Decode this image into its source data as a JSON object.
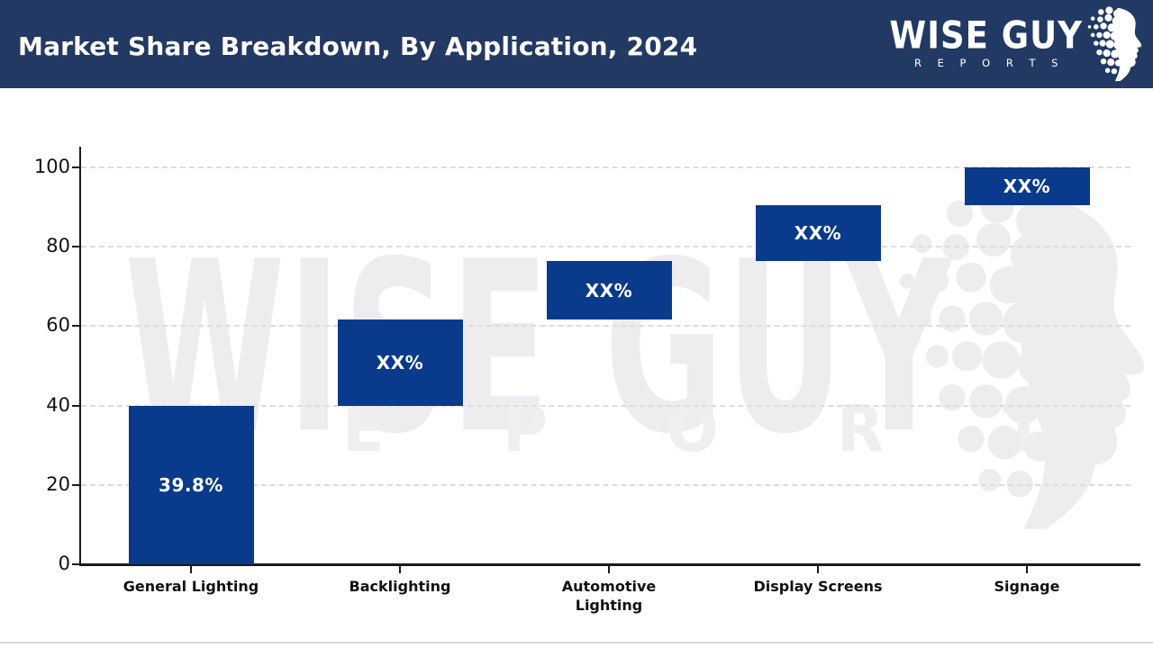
{
  "header": {
    "title": "Market Share Breakdown, By Application, 2024",
    "bg_color": "#223963",
    "logo": {
      "line1": "WISE GUY",
      "line2": "R E P O R T S"
    }
  },
  "watermark": {
    "line1": "WISE GUY",
    "line2": "R E P O R T S"
  },
  "chart_data": {
    "type": "bar",
    "subtype": "waterfall-floating-bars",
    "title": "Market Share Breakdown, By Application, 2024",
    "categories": [
      "General Lighting",
      "Backlighting",
      "Automotive\nLighting",
      "Display Screens",
      "Signage"
    ],
    "series": [
      {
        "name": "Market share segment",
        "segments": [
          {
            "category": "General Lighting",
            "start": 0,
            "end": 39.8,
            "label": "39.8%"
          },
          {
            "category": "Backlighting",
            "start": 39.9,
            "end": 61.7,
            "label": "XX%"
          },
          {
            "category": "Automotive Lighting",
            "start": 61.7,
            "end": 76.4,
            "label": "XX%"
          },
          {
            "category": "Display Screens",
            "start": 76.4,
            "end": 90.5,
            "label": "XX%"
          },
          {
            "category": "Signage",
            "start": 90.5,
            "end": 100.0,
            "label": "XX%"
          }
        ]
      }
    ],
    "xlabel": "",
    "ylabel": "",
    "yticks": [
      0,
      20,
      40,
      60,
      80,
      100
    ],
    "ylim": [
      0,
      105
    ],
    "grid": "horizontal-dashed",
    "legend": "none",
    "bar_color": "#0a3a8c",
    "bar_label_color": "#ffffff",
    "gridline_color": "#dcdcdc",
    "axis_color": "#1a1a1a",
    "tick_label_color": "#111111"
  }
}
